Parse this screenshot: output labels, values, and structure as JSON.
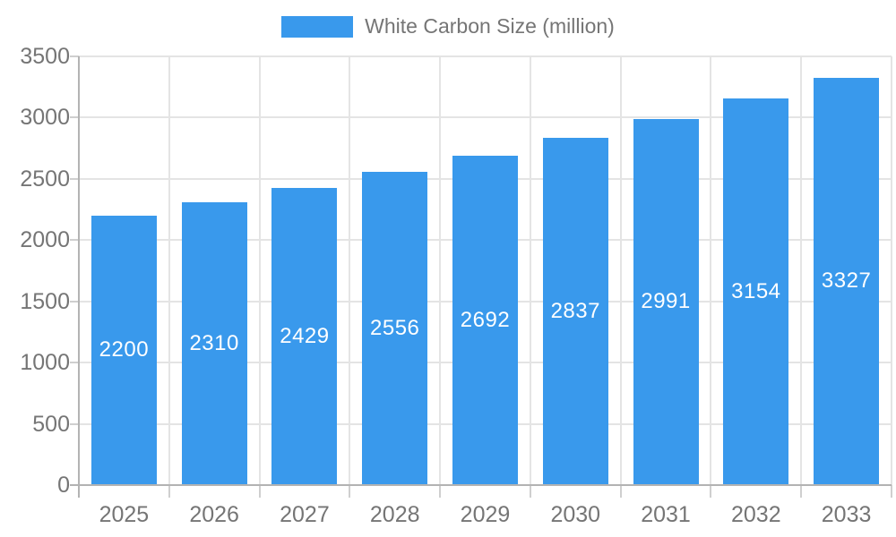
{
  "chart_data": {
    "type": "bar",
    "title": "",
    "legend": {
      "label": "White Carbon Size (million)",
      "position": "top"
    },
    "categories": [
      "2025",
      "2026",
      "2027",
      "2028",
      "2029",
      "2030",
      "2031",
      "2032",
      "2033"
    ],
    "values": [
      2200,
      2310,
      2429,
      2556,
      2692,
      2837,
      2991,
      3154,
      3327
    ],
    "xlabel": "",
    "ylabel": "",
    "ylim": [
      0,
      3500
    ],
    "yticks": [
      0,
      500,
      1000,
      1500,
      2000,
      2500,
      3000,
      3500
    ],
    "grid": true,
    "value_labels_position": "inside-middle",
    "colors": {
      "bar": "#3999EC",
      "value_label": "#FFFFFF",
      "axis_text": "#757575",
      "grid_line": "#E4E4E4",
      "axis_line": "#B3B3B3",
      "tick": "#CFCFCF"
    }
  }
}
